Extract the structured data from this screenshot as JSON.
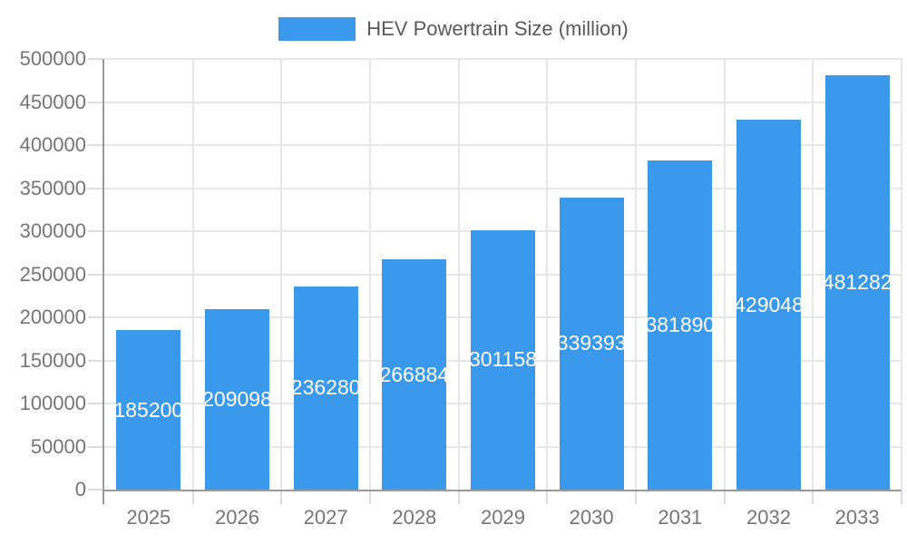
{
  "legend": {
    "label": "HEV Powertrain Size (million)"
  },
  "chart_data": {
    "type": "bar",
    "title": "HEV Powertrain Size (million)",
    "xlabel": "",
    "ylabel": "",
    "categories": [
      "2025",
      "2026",
      "2027",
      "2028",
      "2029",
      "2030",
      "2031",
      "2032",
      "2033"
    ],
    "series": [
      {
        "name": "HEV Powertrain Size (million)",
        "values": [
          185200,
          209098,
          236280,
          266884,
          301158,
          339393,
          381890,
          429048,
          481282
        ]
      }
    ],
    "value_labels_shown": true,
    "ylim": [
      0,
      500000
    ],
    "ytick_step": 50000,
    "ytick_labels": [
      "0",
      "50000",
      "100000",
      "150000",
      "200000",
      "250000",
      "300000",
      "350000",
      "400000",
      "450000",
      "500000"
    ],
    "legend_position": "top-center",
    "grid": true,
    "colors": {
      "bar": "#3B99EC",
      "bar_value_label": "#FFFFFF",
      "grid_line": "#E7E7E7",
      "tick_mark": "#DCDCDC",
      "axis_line": "#9A9A9A",
      "tick_label": "#757575",
      "legend_text": "#595959",
      "background": "#FFFFFF"
    }
  }
}
